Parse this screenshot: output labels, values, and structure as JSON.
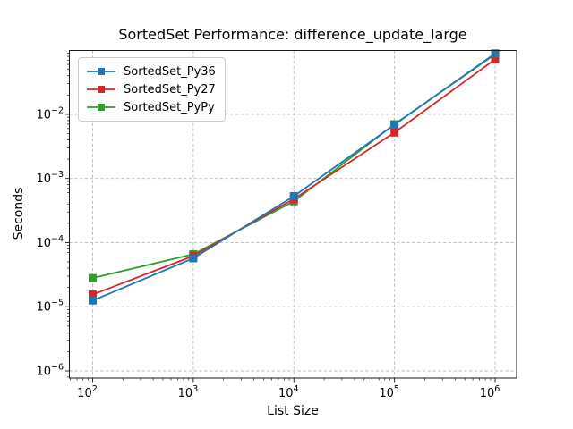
{
  "title": "SortedSet Performance: difference_update_large",
  "colors": {
    "background": "#ffffff",
    "spine": "#1a1a1a",
    "grid": "#b8b8b8",
    "text": "#000000",
    "legend_border": "#cccccc",
    "series_blue": "#1f77b4",
    "series_red": "#d62728",
    "series_green": "#2ca02c"
  },
  "chart_data": {
    "type": "line",
    "title": "SortedSet Performance: difference_update_large",
    "xlabel": "List Size",
    "ylabel": "Seconds",
    "x_scale": "log",
    "y_scale": "log",
    "grid": true,
    "grid_style": "dashed",
    "legend_position": "upper left",
    "marker": "square",
    "x": [
      100,
      1000,
      10000,
      100000,
      1000000
    ],
    "series": [
      {
        "name": "SortedSet_Py36",
        "color": "#1f77b4",
        "values": [
          1.25e-05,
          5.7e-05,
          0.00053,
          0.0069,
          0.089
        ]
      },
      {
        "name": "SortedSet_Py27",
        "color": "#d62728",
        "values": [
          1.55e-05,
          6.2e-05,
          0.00048,
          0.0052,
          0.072
        ]
      },
      {
        "name": "SortedSet_PyPy",
        "color": "#2ca02c",
        "values": [
          2.8e-05,
          6.6e-05,
          0.00044,
          0.007,
          0.086
        ]
      }
    ],
    "xlim_log10": [
      1.7689,
      6.2133
    ],
    "ylim_log10": [
      -6.1116,
      -1.005
    ],
    "x_major_tick_exponents": [
      2,
      3,
      4,
      5,
      6
    ],
    "y_major_tick_exponents": [
      -2,
      -3,
      -4,
      -5,
      -6
    ],
    "x_tick_labels": [
      "10²",
      "10³",
      "10⁴",
      "10⁵",
      "10⁶"
    ],
    "y_tick_labels": [
      "10⁻²",
      "10⁻³",
      "10⁻⁴",
      "10⁻⁵",
      "10⁻⁶"
    ]
  }
}
